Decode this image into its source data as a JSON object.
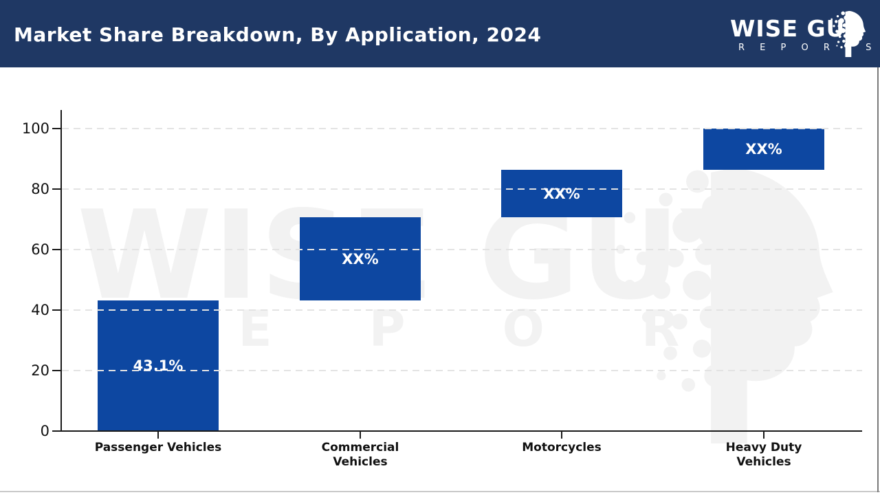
{
  "header": {
    "title": "Market Share Breakdown, By Application, 2024",
    "bg_color": "#1F3864",
    "logo": {
      "name": "WISE GUY",
      "tagline": "R E P O R T S"
    }
  },
  "watermark": {
    "line1": "WISE GUY",
    "line2": "R E P O R T S"
  },
  "chart_data": {
    "type": "waterfall_bar",
    "title": "Market Share Breakdown, By Application, 2024",
    "categories": [
      "Passenger Vehicles",
      "Commercial Vehicles",
      "Motorcycles",
      "Heavy Duty Vehicles"
    ],
    "segments": [
      {
        "category": "Passenger Vehicles",
        "start": 0,
        "end": 43.1,
        "label": "43.1%"
      },
      {
        "category": "Commercial Vehicles",
        "start": 43.1,
        "end": 70.6,
        "label": "XX%"
      },
      {
        "category": "Motorcycles",
        "start": 70.6,
        "end": 86.4,
        "label": "XX%"
      },
      {
        "category": "Heavy Duty Vehicles",
        "start": 86.4,
        "end": 100.0,
        "label": "XX%"
      }
    ],
    "xlabels": [
      [
        "Passenger Vehicles"
      ],
      [
        "Commercial",
        "Vehicles"
      ],
      [
        "Motorcycles"
      ],
      [
        "Heavy Duty",
        "Vehicles"
      ]
    ],
    "y_ticks": [
      0,
      20,
      40,
      60,
      80,
      100
    ],
    "ylim": [
      0,
      105
    ],
    "bar_color": "#0D47A1",
    "grid": {
      "axis": "y",
      "style": "dashed",
      "color": "#E3E3E3"
    },
    "axis_color": "#1A1A1A",
    "legend": "none"
  }
}
